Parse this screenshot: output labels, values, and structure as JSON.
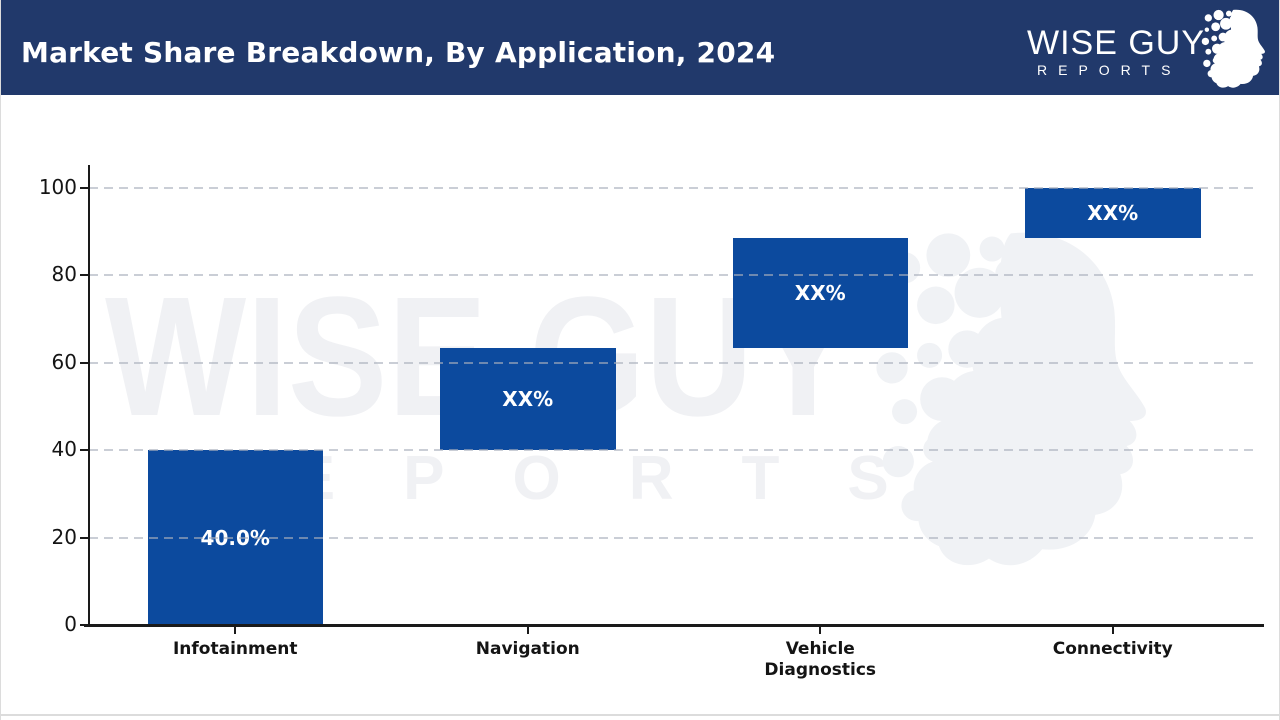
{
  "header": {
    "title": "Market Share Breakdown, By Application, 2024",
    "logo": {
      "line1": "WISE GUY",
      "line2": "REPORTS",
      "icon": "head-profile-dots-icon"
    }
  },
  "watermark": {
    "line1": "WISE GUY",
    "line2": "REPORTS"
  },
  "colors": {
    "header_bg": "#21396b",
    "bar": "#0c4a9e",
    "bar_label": "#ffffff",
    "grid": "#c9ccd3",
    "axis": "#1a1a1a",
    "watermark": "#f0f1f4",
    "background": "#ffffff"
  },
  "chart_data": {
    "type": "bar",
    "variant": "waterfall",
    "title": "Market Share Breakdown, By Application, 2024",
    "categories": [
      "Infotainment",
      "Navigation",
      "Vehicle Diagnostics",
      "Connectivity"
    ],
    "segments": [
      {
        "category": "Infotainment",
        "start": 0,
        "end": 40,
        "value_label": "40.0%"
      },
      {
        "category": "Navigation",
        "start": 40,
        "end": 63.5,
        "value_label": "XX%"
      },
      {
        "category": "Vehicle Diagnostics",
        "start": 63.5,
        "end": 88.5,
        "value_label": "XX%"
      },
      {
        "category": "Connectivity",
        "start": 88.5,
        "end": 100,
        "value_label": "XX%"
      }
    ],
    "xlabel": "",
    "ylabel": "",
    "ylim": [
      0,
      100
    ],
    "yticks": [
      0,
      20,
      40,
      60,
      80,
      100
    ],
    "grid": "horizontal-dashed",
    "legend": "none"
  }
}
